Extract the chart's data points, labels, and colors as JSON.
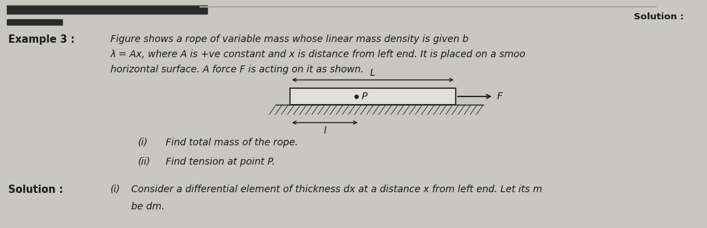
{
  "bg_color": "#c8c7c0",
  "text_color": "#1a1a1a",
  "example_label": "Example 3 :",
  "example_text_line1": "Figure shows a rope of variable mass whose linear mass density is given b",
  "example_text_line2": "λ = Ax, where A is +ve constant and x is distance from left end. It is placed on a smoo",
  "example_text_line3": "horizontal surface. A force F is acting on it as shown.",
  "item_i_label": "(i)",
  "item_i_text": "Find total mass of the rope.",
  "item_ii_label": "(ii)",
  "item_ii_text": "Find tension at point P.",
  "solution_label": "Solution :",
  "solution_i_label": "(i)",
  "solution_text_line1": "Consider a differential element of thickness dx at a distance x from left end. Let its m",
  "solution_text_line2": "be dm.",
  "top_bar_color": "#2a2a2a",
  "rope_fill_color": "#e0dfd8",
  "rope_border_color": "#1a1a1a",
  "ground_hatch_color": "#333333",
  "arrow_color": "#1a1a1a",
  "fig_width": 10.24,
  "fig_height": 3.31,
  "dpi": 100
}
